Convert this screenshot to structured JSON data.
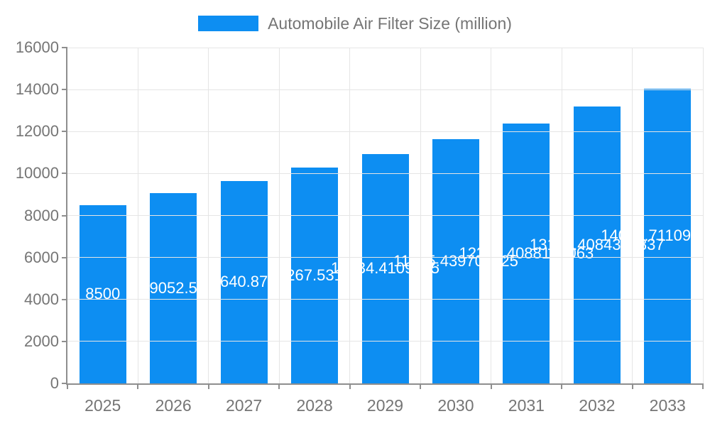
{
  "chart_data": {
    "type": "bar",
    "title": "Automobile Air Filter Size (million)",
    "categories": [
      "2025",
      "2026",
      "2027",
      "2028",
      "2029",
      "2030",
      "2031",
      "2032",
      "2033"
    ],
    "values": [
      8500,
      9052.5,
      9640.875,
      10267.53125,
      10934.4109375,
      11645.439703125,
      12396.4088174063,
      13196.4084396837,
      14046.7110999068
    ],
    "value_labels": [
      "8500",
      "9052.5",
      "9640.875",
      "10267.53125",
      "10934.4109375",
      "11645.439703125",
      "12396.4088174063",
      "13196.4084396837",
      "14046.7110999068"
    ],
    "series_name": "Automobile Air Filter Size (million)",
    "xlabel": "",
    "ylabel": "",
    "ylim": [
      0,
      16000
    ],
    "ytick_interval": 2000,
    "yticks": [
      "0",
      "2000",
      "4000",
      "6000",
      "8000",
      "10000",
      "12000",
      "14000",
      "16000"
    ],
    "legend_position": "top",
    "grid": true,
    "colors": {
      "bar": "#0d8ef2",
      "value_label": "#ffffff",
      "axis_text": "#757575",
      "grid_line": "#e5e5e5",
      "axis_line": "#8e8e8e",
      "background": "#ffffff"
    }
  }
}
